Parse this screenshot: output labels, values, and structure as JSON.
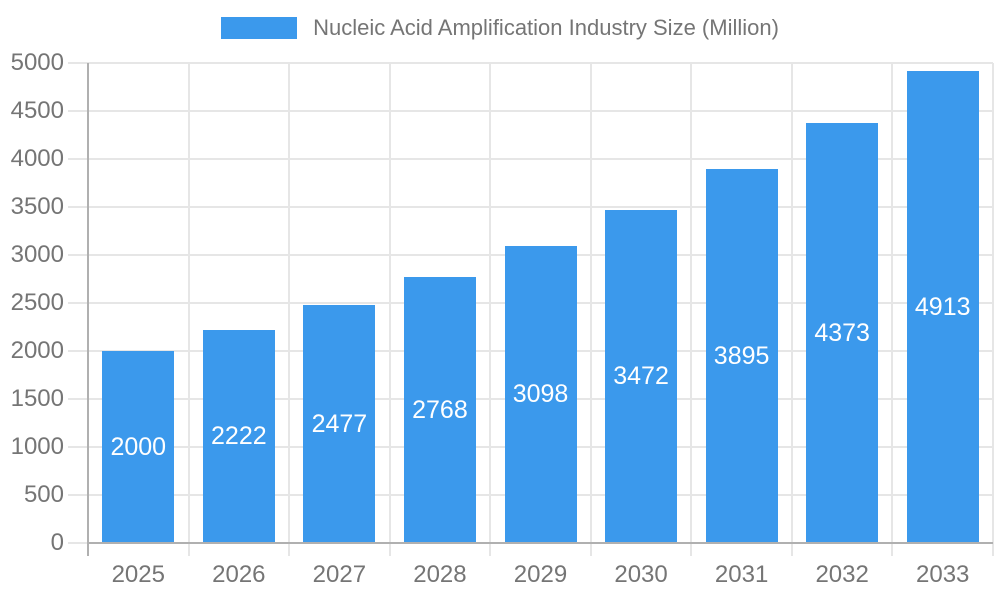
{
  "legend": {
    "series_label": "Nucleic Acid Amplification Industry Size (Million)"
  },
  "chart_data": {
    "type": "bar",
    "title": "Nucleic Acid Amplification Industry Size (Million)",
    "categories": [
      "2025",
      "2026",
      "2027",
      "2028",
      "2029",
      "2030",
      "2031",
      "2032",
      "2033"
    ],
    "values": [
      2000,
      2222,
      2477,
      2768,
      3098,
      3472,
      3895,
      4373,
      4913
    ],
    "yticks": [
      0,
      500,
      1000,
      1500,
      2000,
      2500,
      3000,
      3500,
      4000,
      4500,
      5000
    ],
    "ylim": [
      0,
      5000
    ],
    "xlabel": "",
    "ylabel": "",
    "grid": true,
    "legend_position": "top",
    "colors": {
      "bar": "#3b99ec",
      "bar_label": "#ffffff",
      "axis_text": "#757575",
      "axis_line": "#b0b0b0",
      "gridline": "#e6e6e6",
      "background": "#ffffff"
    }
  }
}
